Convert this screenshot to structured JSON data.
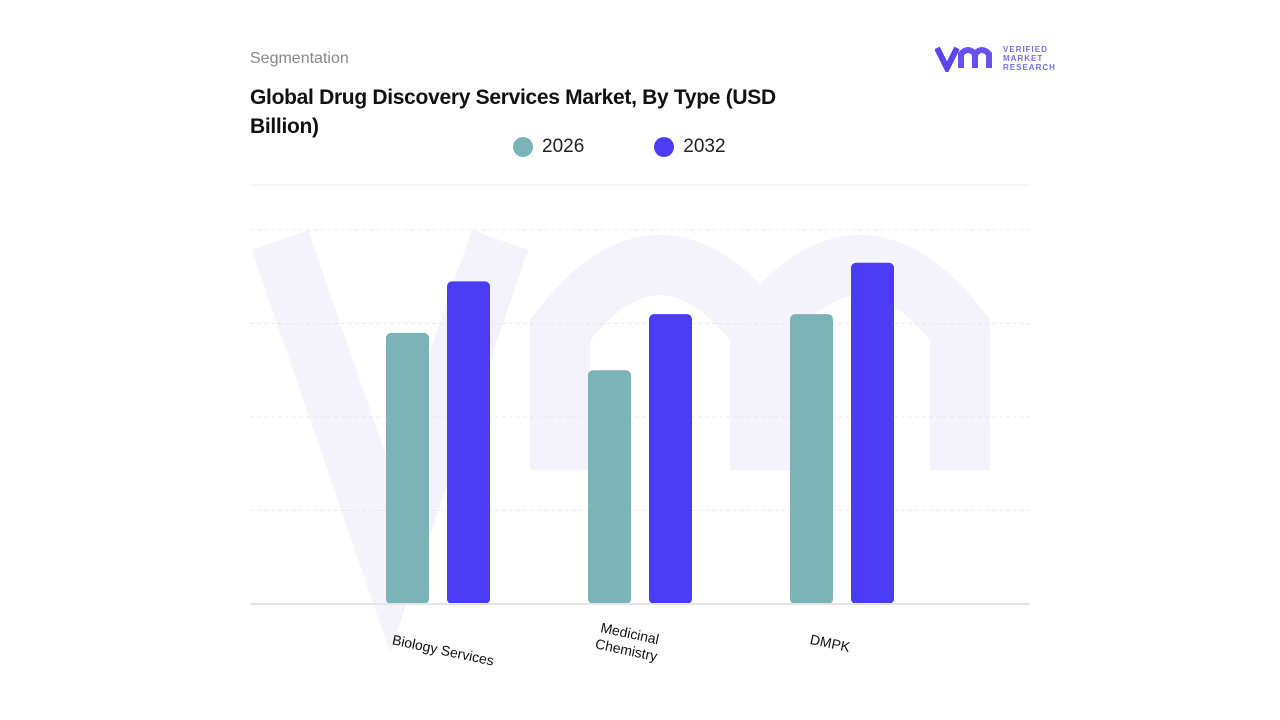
{
  "header": {
    "section": "Segmentation",
    "logo_text": [
      "VERIFIED",
      "MARKET",
      "RESEARCH"
    ]
  },
  "chart_data": {
    "type": "bar",
    "title": "Global Drug Discovery Services Market, By Type (USD Billion)",
    "categories": [
      "Biology Services",
      "Medicinal Chemistry",
      "DMPK"
    ],
    "series": [
      {
        "name": "2026",
        "color": "#7ab3b8",
        "values": [
          2.9,
          2.5,
          3.1
        ]
      },
      {
        "name": "2032",
        "color": "#4b3cf5",
        "values": [
          3.45,
          3.1,
          3.65
        ]
      }
    ],
    "ylim": [
      0,
      4
    ],
    "grid": true,
    "legend": "top-center"
  }
}
